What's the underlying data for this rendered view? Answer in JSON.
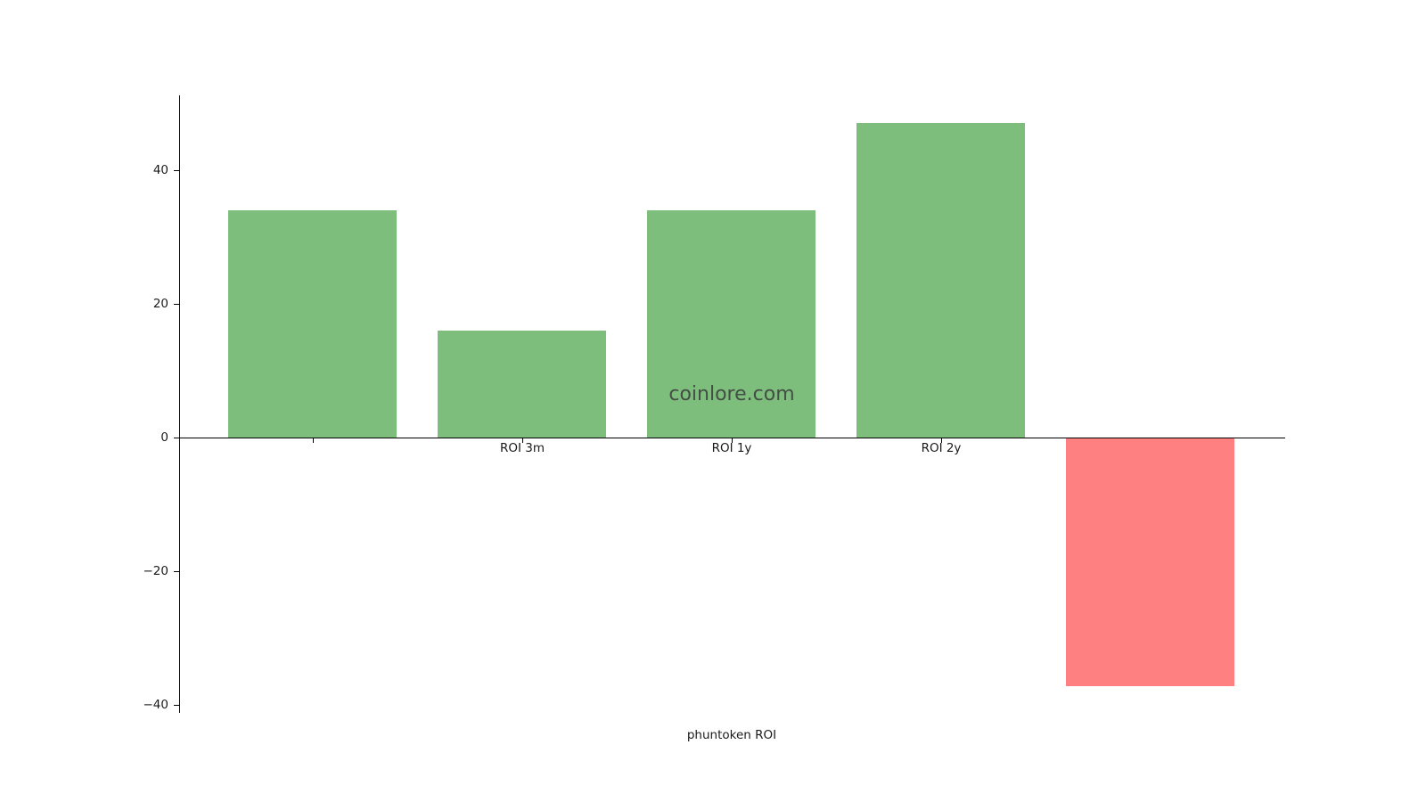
{
  "watermark": {
    "text": "coinlore.com",
    "color": "#3b3b3b"
  },
  "chart_data": {
    "type": "bar",
    "title": "",
    "xlabel": "phuntoken ROI",
    "ylabel": "",
    "categories": [
      "",
      "ROI 3m",
      "ROI 1y",
      "ROI 2y",
      ""
    ],
    "values": [
      34,
      16,
      34,
      47,
      -37
    ],
    "ytick_labels": [
      "40",
      "20",
      "0",
      "−20",
      "−40"
    ],
    "ytick_values": [
      40,
      20,
      0,
      -20,
      -40
    ],
    "ylim": [
      -41.2,
      51.2
    ],
    "grid": false,
    "legend_position": "none",
    "positive_color": "#7dbe7d",
    "negative_color": "#ff8080",
    "axis_color": "#000000",
    "text_color": "#1a1a1a"
  }
}
